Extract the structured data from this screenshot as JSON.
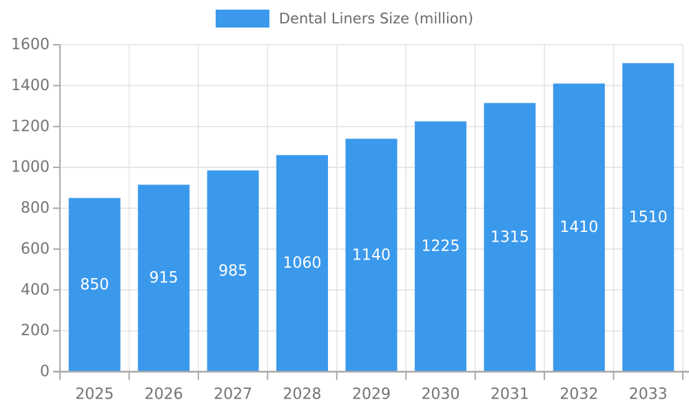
{
  "legend": {
    "label": "Dental Liners Size (million)"
  },
  "chart_data": {
    "type": "bar",
    "title": "",
    "xlabel": "",
    "ylabel": "",
    "series_name": "Dental Liners Size (million)",
    "categories": [
      "2025",
      "2026",
      "2027",
      "2028",
      "2029",
      "2030",
      "2031",
      "2032",
      "2033"
    ],
    "values": [
      850,
      915,
      985,
      1060,
      1140,
      1225,
      1315,
      1410,
      1510
    ],
    "value_labels": [
      "850",
      "915",
      "985",
      "1060",
      "1140",
      "1225",
      "1315",
      "1410",
      "1510"
    ],
    "ylim": [
      0,
      1600
    ],
    "ytick_step": 200,
    "ytick_labels": [
      "0",
      "200",
      "400",
      "600",
      "800",
      "1000",
      "1200",
      "1400",
      "1600"
    ],
    "grid": true,
    "legend_position": "top-center",
    "colors": {
      "bar": "#3b99ec",
      "value_label": "#ffffff",
      "grid": "#e1e1e1",
      "axis_line": "#a9a9a9",
      "tick": "#a9a9a9",
      "axis_label": "#747474",
      "legend_text": "#6b6b6b",
      "background": "#ffffff"
    }
  }
}
